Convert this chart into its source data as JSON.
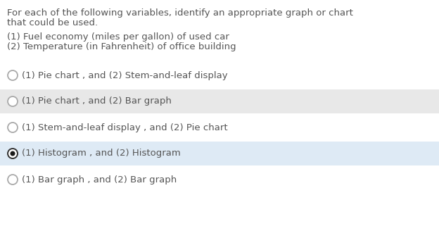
{
  "background_color": "#ffffff",
  "question_lines": [
    "For each of the following variables, identify an appropriate graph or chart",
    "that could be used."
  ],
  "sub_lines": [
    "(1) Fuel economy (miles per gallon) of used car",
    "(2) Temperature (in Fahrenheit) of office building"
  ],
  "options": [
    {
      "text": "(1) Pie chart , and (2) Stem-and-leaf display",
      "selected": false,
      "bg": "#ffffff"
    },
    {
      "text": "(1) Pie chart , and (2) Bar graph",
      "selected": false,
      "bg": "#e8e8e8"
    },
    {
      "text": "(1) Stem-and-leaf display , and (2) Pie chart",
      "selected": false,
      "bg": "#ffffff"
    },
    {
      "text": "(1) Histogram , and (2) Histogram",
      "selected": true,
      "bg": "#deeaf5"
    },
    {
      "text": "(1) Bar graph , and (2) Bar graph",
      "selected": false,
      "bg": "#ffffff"
    }
  ],
  "text_color": "#555555",
  "question_fontsize": 9.5,
  "option_fontsize": 9.5,
  "figwidth": 6.24,
  "figheight": 3.55,
  "dpi": 100
}
